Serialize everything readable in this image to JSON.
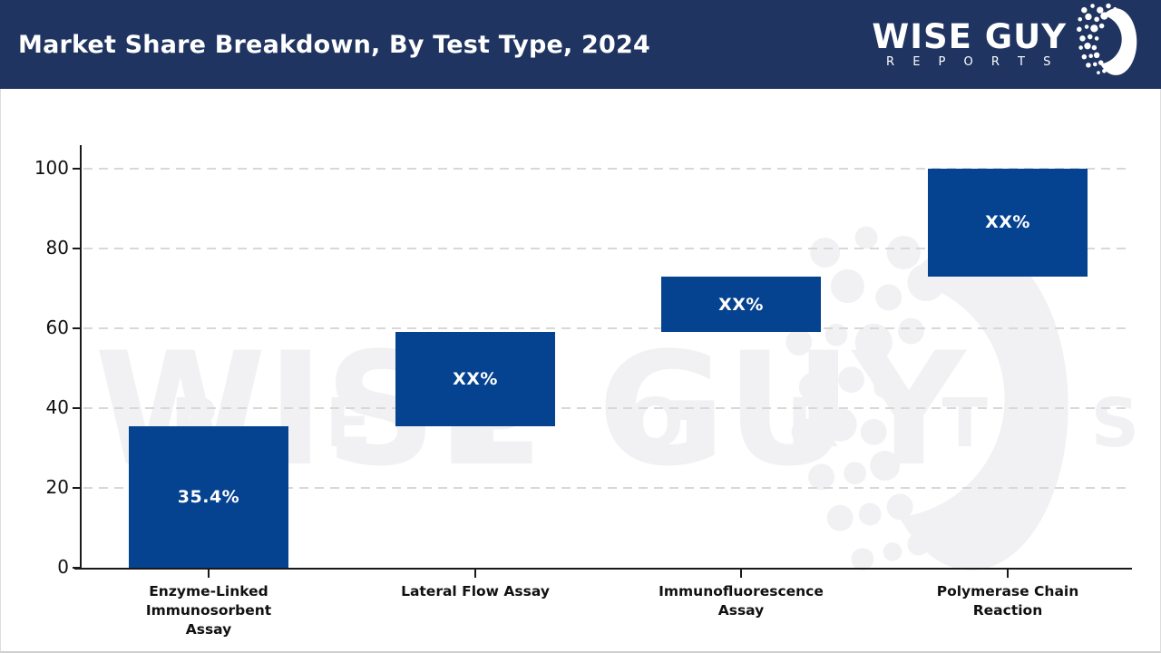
{
  "header": {
    "title": "Market Share Breakdown, By Test Type, 2024",
    "logo": {
      "line1": "WISE GUY",
      "line2": "R E P O R T S"
    }
  },
  "watermark": {
    "line1": "WISE GUY",
    "line2": "R E P O R T S"
  },
  "colors": {
    "header_bg": "#1f3461",
    "bar": "#05428f",
    "grid": "#d8d8d8",
    "watermark": "#f1f1f3",
    "axis": "#1a1a1a"
  },
  "chart_data": {
    "type": "bar",
    "subtype": "waterfall-floating-bars",
    "title": "Market Share Breakdown, By Test Type, 2024",
    "categories": [
      "Enzyme-Linked Immunosorbent Assay",
      "Lateral Flow Assay",
      "Immunofluorescence Assay",
      "Polymerase Chain Reaction"
    ],
    "category_lines": [
      [
        "Enzyme-Linked",
        "Immunosorbent",
        "Assay"
      ],
      [
        "Lateral Flow Assay"
      ],
      [
        "Immunofluorescence",
        "Assay"
      ],
      [
        "Polymerase Chain",
        "Reaction"
      ]
    ],
    "bars": [
      {
        "category": "Enzyme-Linked Immunosorbent Assay",
        "start": 0,
        "end": 35.4,
        "label": "35.4%"
      },
      {
        "category": "Lateral Flow Assay",
        "start": 35.4,
        "end": 59,
        "label": "XX%"
      },
      {
        "category": "Immunofluorescence Assay",
        "start": 59,
        "end": 73,
        "label": "XX%"
      },
      {
        "category": "Polymerase Chain Reaction",
        "start": 73,
        "end": 100,
        "label": "XX%"
      }
    ],
    "yticks": [
      0,
      20,
      40,
      60,
      80,
      100
    ],
    "ytick_labels": [
      "0",
      "20",
      "40",
      "60",
      "80",
      "100"
    ],
    "ylim": [
      0,
      100
    ],
    "xlabel": "",
    "ylabel": "",
    "grid": "horizontal-dashed",
    "legend": "none"
  }
}
